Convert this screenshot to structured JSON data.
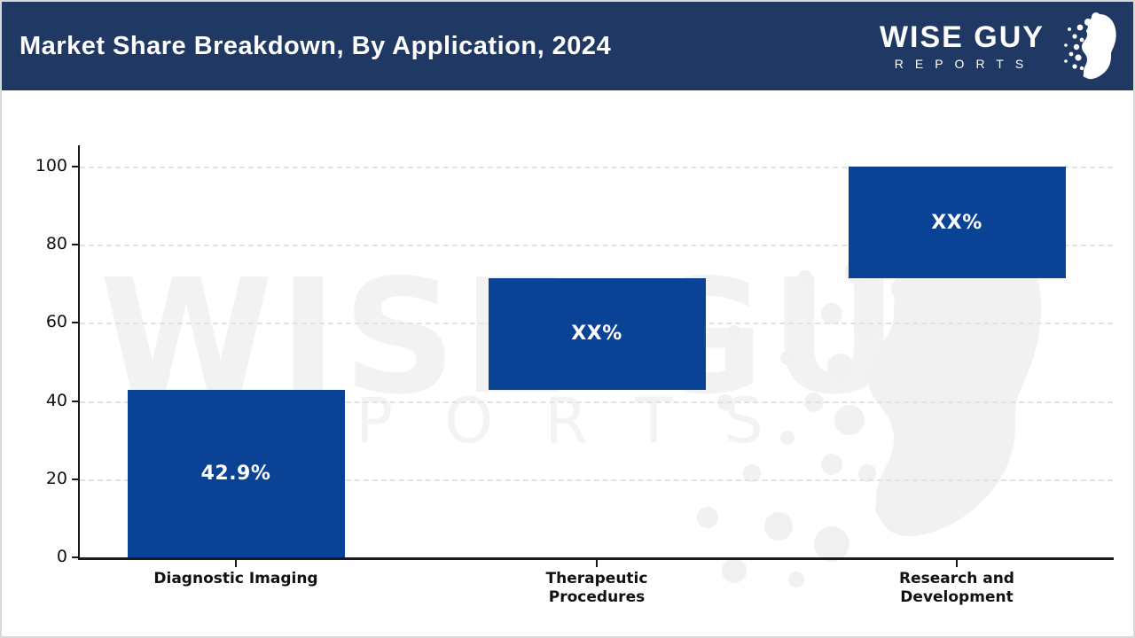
{
  "header": {
    "title": "Market Share Breakdown, By Application, 2024",
    "logo": {
      "line1": "WISE GUY",
      "line2": "REPORTS"
    }
  },
  "watermark": {
    "line1": "WISE GUY",
    "line2": "REPORTS"
  },
  "chart_data": {
    "type": "bar",
    "subtype": "stacked-waterfall",
    "title": "Market Share Breakdown, By Application, 2024",
    "categories": [
      "Diagnostic Imaging",
      "Therapeutic\nProcedures",
      "Research and\nDevelopment"
    ],
    "segments": [
      {
        "category": "Diagnostic Imaging",
        "start": 0,
        "end": 42.9,
        "value": 42.9,
        "label": "42.9%"
      },
      {
        "category": "Therapeutic Procedures",
        "start": 42.9,
        "end": 71.4,
        "value": 28.5,
        "label": "XX%"
      },
      {
        "category": "Research and Development",
        "start": 71.4,
        "end": 100,
        "value": 28.6,
        "label": "XX%"
      }
    ],
    "yticks": [
      0,
      20,
      40,
      60,
      80,
      100
    ],
    "ylim": [
      0,
      105
    ],
    "xlabel": "",
    "ylabel": "",
    "grid": true,
    "legend": null,
    "bar_color": "#0a4296",
    "bar_label_color": "#ffffff",
    "axis_color": "#1a1a1a",
    "grid_color": "#e2e2e2",
    "header_color": "#1f3864"
  }
}
